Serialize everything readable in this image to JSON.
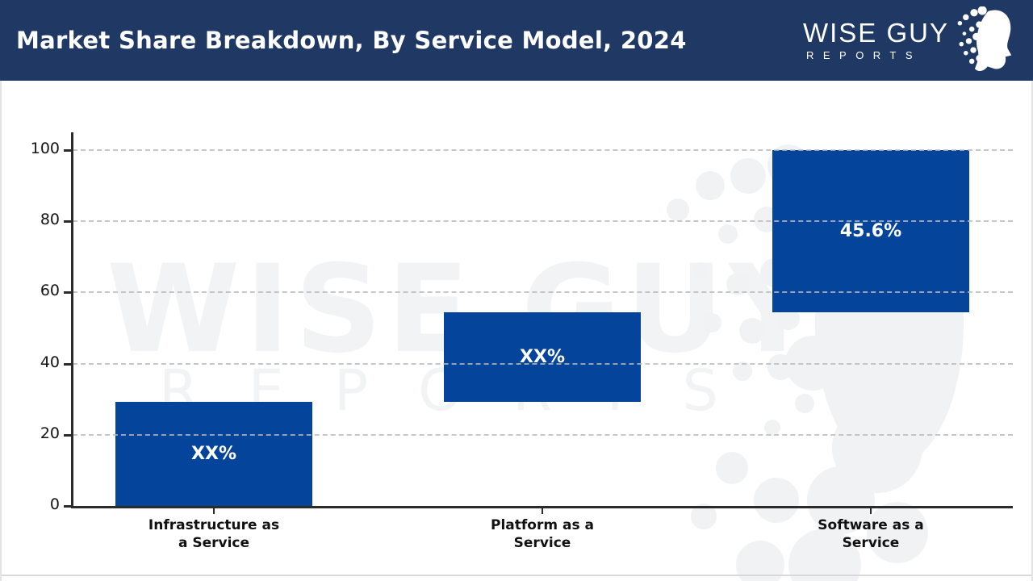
{
  "header": {
    "title": "Market Share Breakdown, By Service Model, 2024",
    "logo": {
      "brand": "WISE GUY",
      "subbrand": "REPORTS"
    },
    "colors": {
      "background": "#203864",
      "text": "#ffffff"
    }
  },
  "watermark": {
    "line1": "WISE GUY",
    "line2": "REPORTS"
  },
  "chart_data": {
    "type": "bar",
    "subtype": "waterfall",
    "title": "Market Share Breakdown, By Service Model, 2024",
    "categories": [
      [
        "Infrastructure as",
        "a Service"
      ],
      [
        "Platform as a",
        "Service"
      ],
      [
        "Software as a",
        "Service"
      ]
    ],
    "segments": [
      {
        "category": "Infrastructure as a Service",
        "label": "XX%",
        "start": 0,
        "end": 29.2
      },
      {
        "category": "Platform as a Service",
        "label": "XX%",
        "start": 29.2,
        "end": 54.4
      },
      {
        "category": "Software as a Service",
        "label": "45.6%",
        "start": 54.4,
        "end": 100
      }
    ],
    "ylim": [
      0,
      100
    ],
    "yticks": [
      0,
      20,
      40,
      60,
      80,
      100
    ],
    "grid": "horizontal-dashed",
    "legend": "none",
    "bar_color": "#04459B",
    "bar_label_color": "#ffffff",
    "axis_color": "#2b2b2b",
    "grid_color": "#d9d9d9"
  }
}
